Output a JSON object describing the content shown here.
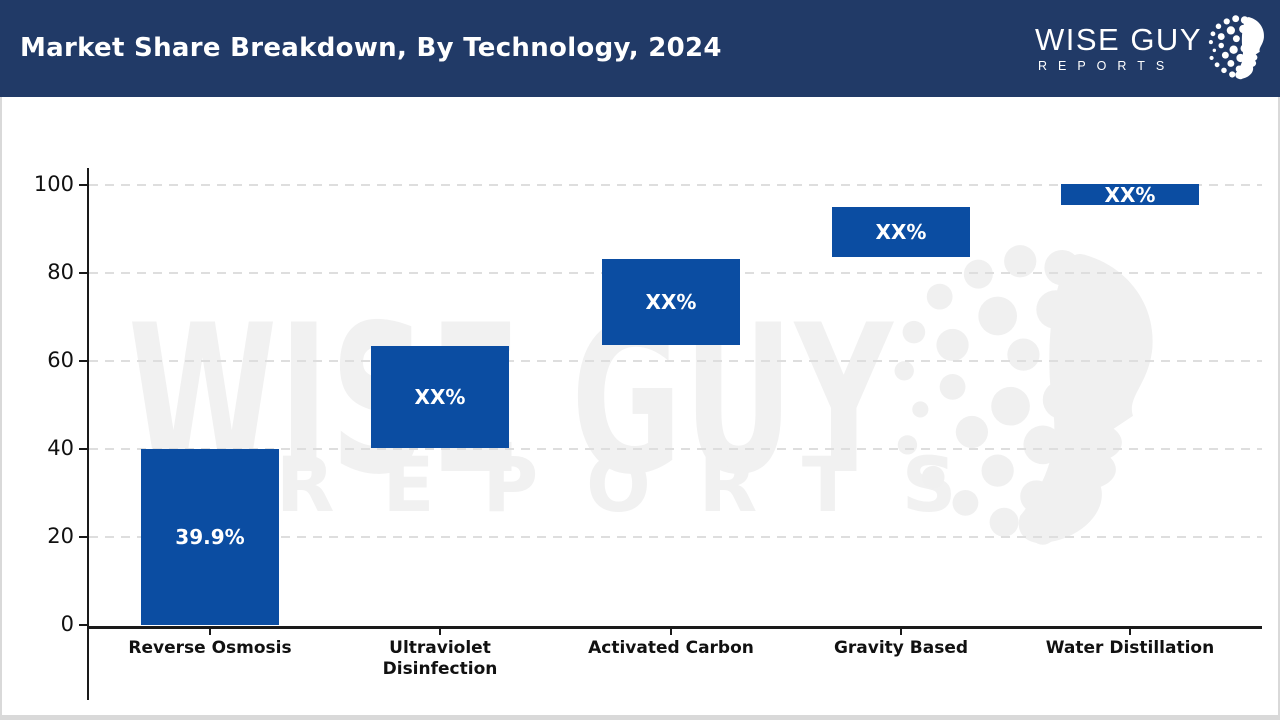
{
  "header": {
    "title": "Market Share Breakdown, By Technology, 2024",
    "bg_color": "#213A67",
    "logo": {
      "line1": "WISE GUY",
      "line2": "REPORTS"
    }
  },
  "watermark": {
    "line1": "WISE GUY",
    "line2": "REPORTS"
  },
  "chart_data": {
    "type": "bar",
    "subtype": "waterfall",
    "title": "Market Share Breakdown, By Technology, 2024",
    "categories": [
      "Reverse Osmosis",
      "Ultraviolet Disinfection",
      "Activated Carbon",
      "Gravity Based",
      "Water Distillation"
    ],
    "bars": [
      {
        "category": "Reverse Osmosis",
        "label": "39.9%",
        "start": 0,
        "end": 39.9,
        "value": 39.9
      },
      {
        "category": "Ultraviolet Disinfection",
        "label": "XX%",
        "start": 40.2,
        "end": 63.4,
        "value": 23.2
      },
      {
        "category": "Activated Carbon",
        "label": "XX%",
        "start": 63.6,
        "end": 83.2,
        "value": 19.6
      },
      {
        "category": "Gravity Based",
        "label": "XX%",
        "start": 83.6,
        "end": 94.9,
        "value": 11.3
      },
      {
        "category": "Water Distillation",
        "label": "XX%",
        "start": 95.4,
        "end": 100.2,
        "value": 4.8
      }
    ],
    "y_ticks": [
      0,
      20,
      40,
      60,
      80,
      100
    ],
    "ylim": [
      0,
      104
    ],
    "xlabel": "",
    "ylabel": "",
    "bar_color": "#0B4DA2",
    "bar_label_color": "#ffffff",
    "grid": "horizontal dashed",
    "legend": "none"
  }
}
